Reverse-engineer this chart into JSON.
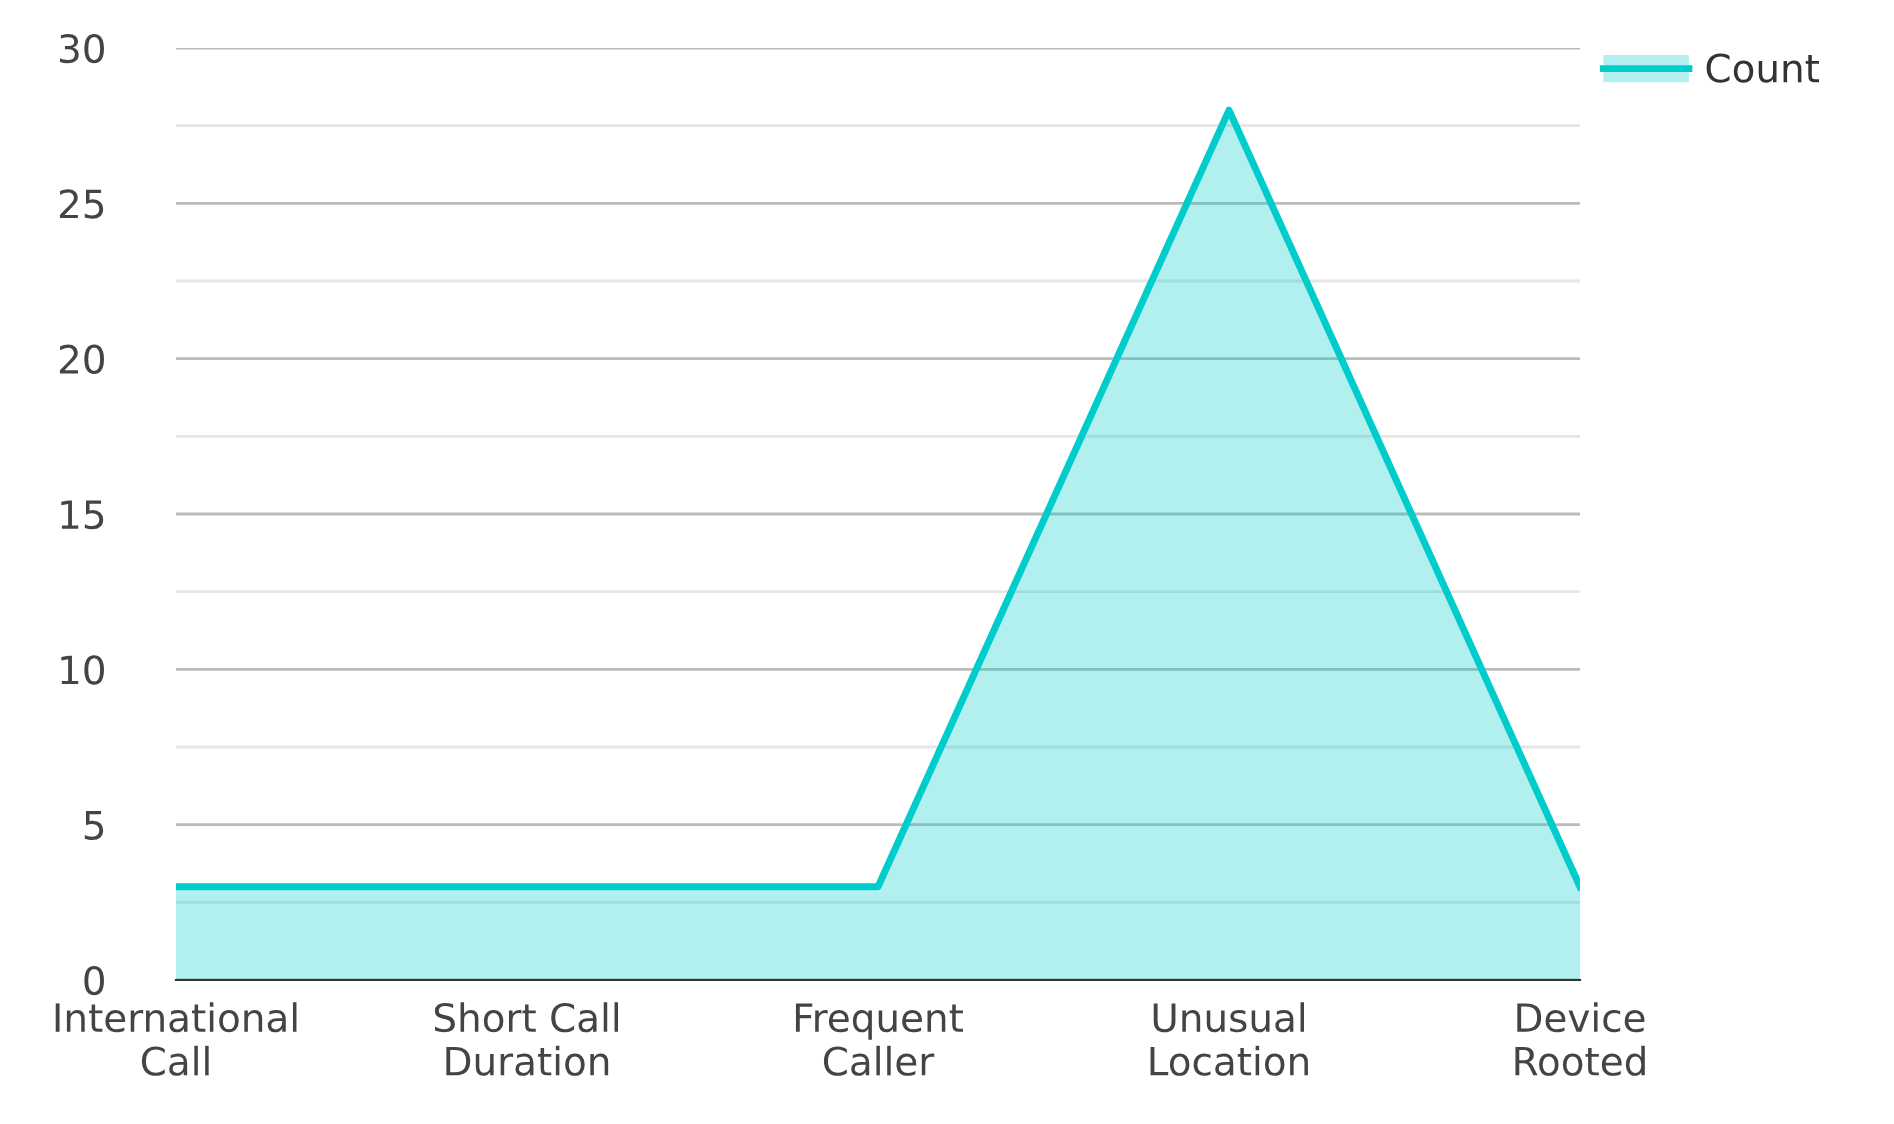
{
  "chart_data": {
    "type": "area",
    "categories": [
      "International\nCall",
      "Short Call\nDuration",
      "Frequent\nCaller",
      "Unusual\nLocation",
      "Device\nRooted"
    ],
    "series": [
      {
        "name": "Count",
        "color": "#00cccc",
        "values": [
          3,
          3,
          3,
          28,
          3
        ]
      }
    ],
    "ylim": [
      0,
      30
    ],
    "yticks": [
      0,
      {
        "value": 2.5,
        "label": null
      },
      5,
      {
        "value": 7.5,
        "label": null
      },
      10,
      {
        "value": 12.5,
        "label": null
      },
      15,
      {
        "value": 17.5,
        "label": null
      },
      20,
      {
        "value": 22.5,
        "label": null
      },
      25,
      {
        "value": 27.5,
        "label": null
      },
      30
    ],
    "grid": "y",
    "legend": "top right",
    "marker": "none",
    "line_style": "solid"
  }
}
